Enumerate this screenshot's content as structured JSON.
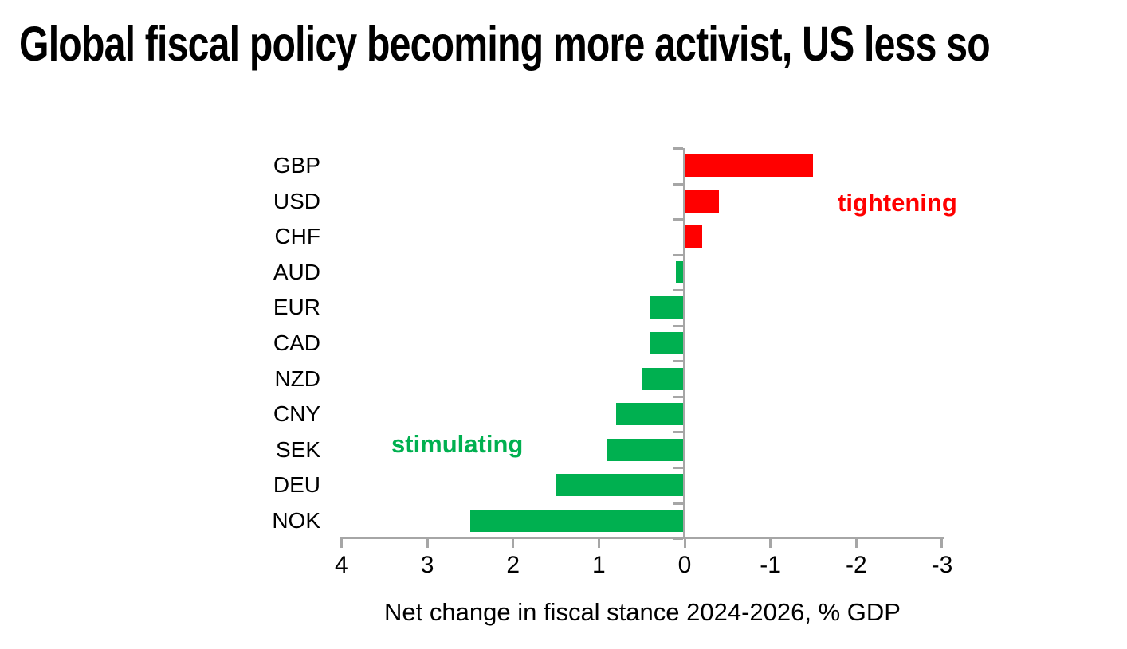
{
  "chart_data": {
    "type": "bar",
    "orientation": "horizontal",
    "title": "Global fiscal policy becoming more activist, US less so",
    "xlabel": "Net change in fiscal stance 2024-2026, % GDP",
    "categories": [
      "GBP",
      "USD",
      "CHF",
      "AUD",
      "EUR",
      "CAD",
      "NZD",
      "CNY",
      "SEK",
      "DEU",
      "NOK"
    ],
    "values": [
      -1.5,
      -0.4,
      -0.2,
      0.1,
      0.4,
      0.4,
      0.5,
      0.8,
      0.9,
      1.5,
      2.5
    ],
    "x_ticks": [
      4,
      3,
      2,
      1,
      0,
      -1,
      -2,
      -3
    ],
    "xlim": [
      4,
      -3
    ],
    "x_axis_reversed": true,
    "grid": false,
    "legend_position": "none",
    "positive_color": "#00B050",
    "negative_color": "#FF0000",
    "axis_color": "#A6A6A6",
    "annotations": [
      {
        "text": "tightening",
        "color": "#FF0000",
        "aligned_row": "USD",
        "side": "right-of-bars"
      },
      {
        "text": "stimulating",
        "color": "#00B050",
        "aligned_row": "SEK",
        "side": "left-of-bars"
      }
    ]
  }
}
